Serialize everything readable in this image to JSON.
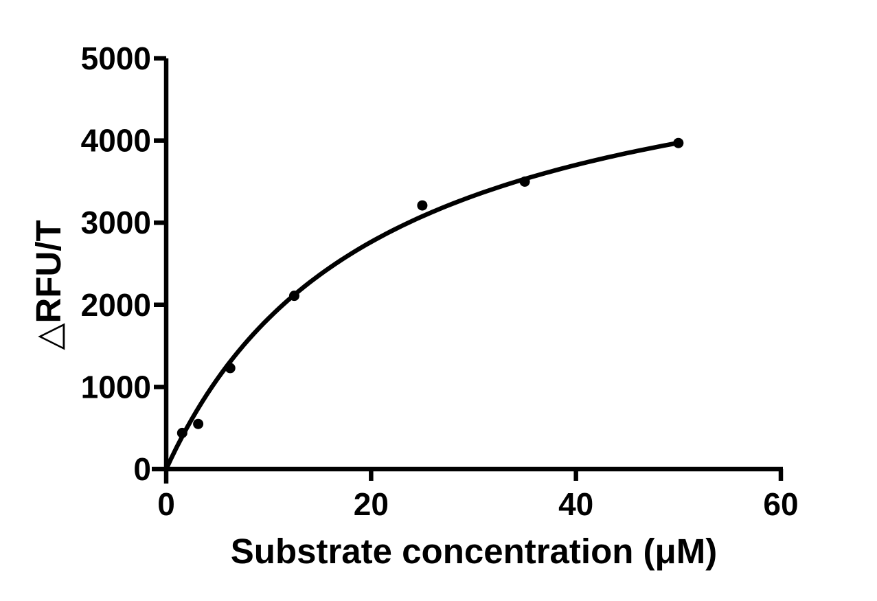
{
  "chart_data": {
    "type": "scatter",
    "title": "",
    "xlabel": "Substrate concentration (μM)",
    "ylabel": "△RFU/T",
    "xlim": [
      0,
      60
    ],
    "ylim": [
      0,
      5000
    ],
    "x_ticks": [
      0,
      20,
      40,
      60
    ],
    "y_ticks": [
      0,
      1000,
      2000,
      3000,
      4000,
      5000
    ],
    "grid": false,
    "legend": false,
    "marker": "filled-circle",
    "marker_color": "#000000",
    "curve_color": "#000000",
    "axis_color": "#000000",
    "background_color": "#ffffff",
    "x": [
      1.5625,
      3.125,
      6.25,
      12.5,
      25,
      35,
      50
    ],
    "y": [
      440,
      550,
      1230,
      2110,
      3210,
      3500,
      3970
    ],
    "fit_curve": {
      "model": "michaelis-menten",
      "equation": "v = Vmax*S/(Km+S)",
      "vmax": 5600,
      "km": 20.5,
      "x_start": 0,
      "x_end": 50
    }
  }
}
